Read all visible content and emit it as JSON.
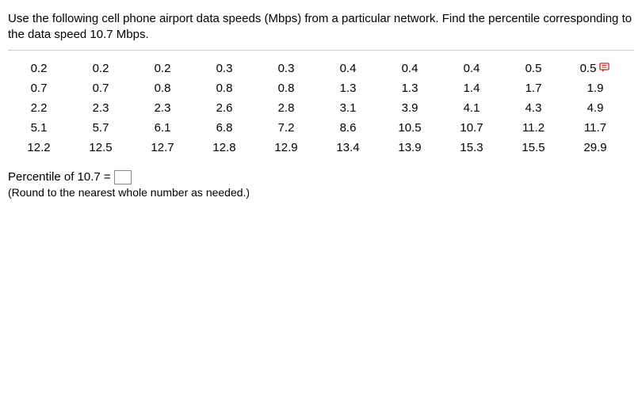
{
  "question": "Use the following cell phone airport data speeds (Mbps) from a particular network. Find the percentile corresponding to the data speed 10.7 Mbps.",
  "data_table": {
    "columns": 10,
    "rows": [
      [
        "0.2",
        "0.2",
        "0.2",
        "0.3",
        "0.3",
        "0.4",
        "0.4",
        "0.4",
        "0.5",
        "0.5"
      ],
      [
        "0.7",
        "0.7",
        "0.8",
        "0.8",
        "0.8",
        "1.3",
        "1.3",
        "1.4",
        "1.7",
        "1.9"
      ],
      [
        "2.2",
        "2.3",
        "2.3",
        "2.6",
        "2.8",
        "3.1",
        "3.9",
        "4.1",
        "4.3",
        "4.9"
      ],
      [
        "5.1",
        "5.7",
        "6.1",
        "6.8",
        "7.2",
        "8.6",
        "10.5",
        "10.7",
        "11.2",
        "11.7"
      ],
      [
        "12.2",
        "12.5",
        "12.7",
        "12.8",
        "12.9",
        "13.4",
        "13.9",
        "15.3",
        "15.5",
        "29.9"
      ]
    ],
    "cell_fontsize": 15,
    "text_color": "#000000",
    "background_color": "#ffffff",
    "comment_icon_position": {
      "row": 0,
      "col": 9
    },
    "comment_icon_color": "#c62828"
  },
  "prompt": {
    "label_prefix": "Percentile of 10.7 =",
    "hint": "(Round to the nearest whole number as needed.)"
  },
  "styling": {
    "body_font": "Arial",
    "body_fontsize": 15,
    "divider_color": "#cccccc",
    "answer_box_border": "#888888",
    "icon_fill": "#c62828",
    "icon_stroke": "#c62828"
  }
}
